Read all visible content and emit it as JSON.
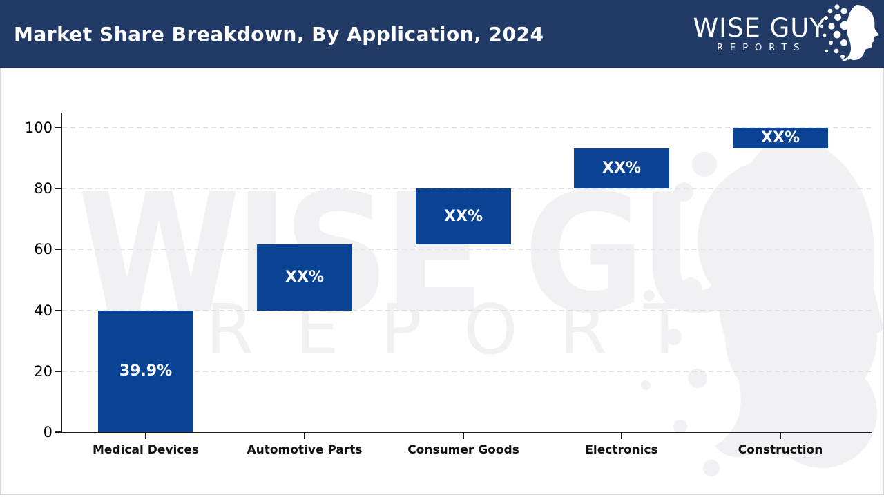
{
  "header": {
    "title": "Market Share Breakdown, By Application, 2024",
    "bg_color": "#213a66",
    "logo": {
      "line1": "WISE GUY",
      "line2": "REPORTS"
    }
  },
  "watermark": {
    "line1": "WISE GUY",
    "line2": "REPORTS"
  },
  "chart_data": {
    "type": "bar",
    "subtype": "waterfall",
    "title": "Market Share Breakdown, By Application, 2024",
    "categories": [
      "Medical Devices",
      "Automotive Parts",
      "Consumer Goods",
      "Electronics",
      "Construction"
    ],
    "segments": [
      {
        "category": "Medical Devices",
        "start": 0,
        "end": 39.9,
        "label": "39.9%"
      },
      {
        "category": "Automotive Parts",
        "start": 39.9,
        "end": 61.6,
        "label": "XX%"
      },
      {
        "category": "Consumer Goods",
        "start": 61.6,
        "end": 80.0,
        "label": "XX%"
      },
      {
        "category": "Electronics",
        "start": 80.0,
        "end": 93.2,
        "label": "XX%"
      },
      {
        "category": "Construction",
        "start": 93.2,
        "end": 100.0,
        "label": "XX%"
      }
    ],
    "y_ticks": [
      0,
      20,
      40,
      60,
      80,
      100
    ],
    "ylim": [
      0,
      105
    ],
    "xlabel": "",
    "ylabel": "",
    "legend": "none",
    "grid": "horizontal-dashed",
    "bar_color": "#0a4294",
    "bar_label_color": "#ffffff",
    "grid_color": "#e0e0e0",
    "axis_color": "#1a1a1a"
  }
}
